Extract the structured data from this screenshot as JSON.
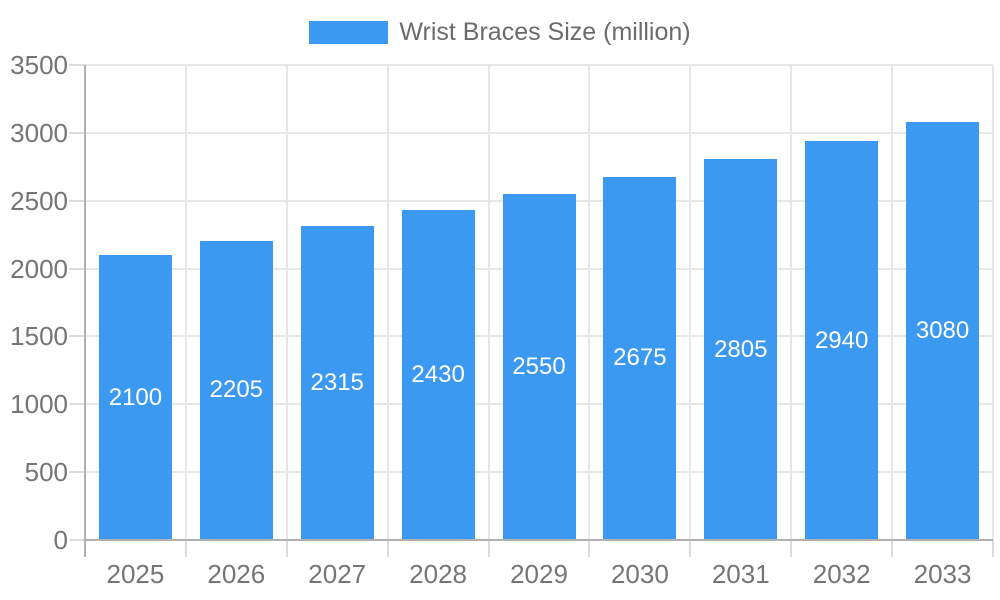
{
  "chart_data": {
    "type": "bar",
    "title": "Wrist Braces Size (million)",
    "legend": [
      "Wrist Braces Size (million)"
    ],
    "legend_position": "top",
    "categories": [
      "2025",
      "2026",
      "2027",
      "2028",
      "2029",
      "2030",
      "2031",
      "2032",
      "2033"
    ],
    "values": [
      2100,
      2205,
      2315,
      2430,
      2550,
      2675,
      2805,
      2940,
      3080
    ],
    "bar_labels": [
      "2100",
      "2205",
      "2315",
      "2430",
      "2550",
      "2675",
      "2805",
      "2940",
      "3080"
    ],
    "xlabel": "",
    "ylabel": "",
    "ylim": [
      0,
      3500
    ],
    "yticks": [
      0,
      500,
      1000,
      1500,
      2000,
      2500,
      3000,
      3500
    ],
    "grid": true,
    "colors": {
      "bar": "#3b99f1",
      "bar_label_text": "#ffffff",
      "grid": "#e7e7e7",
      "tick": "#dcdcdc",
      "axis_line": "#b0b0b0",
      "axis_text": "#757575",
      "legend_text": "#6b6b6b",
      "background": "#ffffff"
    }
  }
}
